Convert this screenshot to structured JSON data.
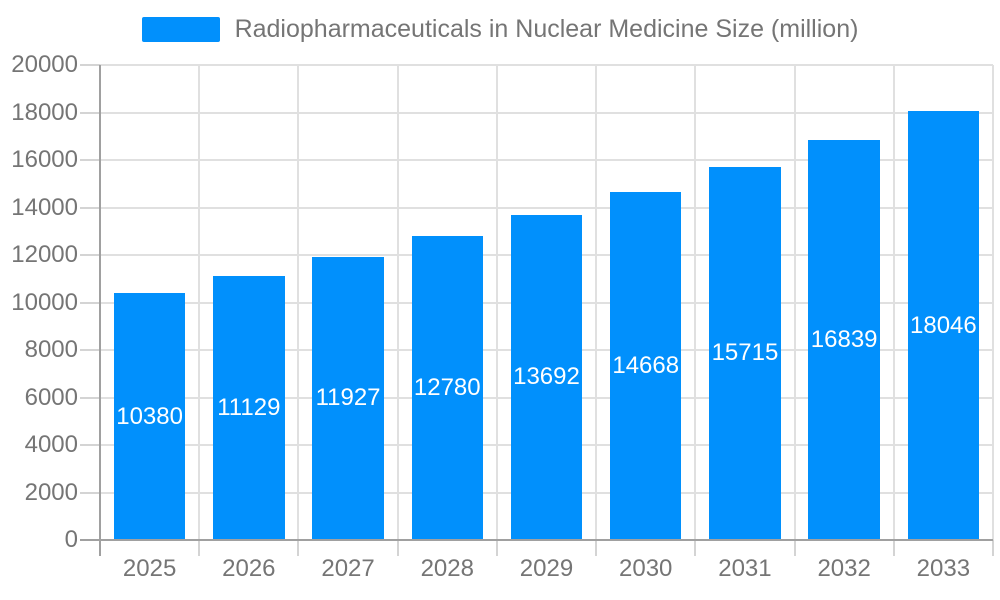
{
  "chart_data": {
    "type": "bar",
    "title": "Radiopharmaceuticals in Nuclear Medicine Size (million)",
    "categories": [
      "2025",
      "2026",
      "2027",
      "2028",
      "2029",
      "2030",
      "2031",
      "2032",
      "2033"
    ],
    "series": [
      {
        "name": "Radiopharmaceuticals in Nuclear Medicine Size (million)",
        "values": [
          10380,
          11129,
          11927,
          12780,
          13692,
          14668,
          15715,
          16839,
          18046
        ]
      }
    ],
    "xlabel": "",
    "ylabel": "",
    "ylim": [
      0,
      20000
    ],
    "ytick_step": 2000,
    "y_tick_labels": [
      "0",
      "2000",
      "4000",
      "6000",
      "8000",
      "10000",
      "12000",
      "14000",
      "16000",
      "18000",
      "20000"
    ],
    "grid": true,
    "legend_position": "top-center",
    "value_label_position": "inside-center"
  },
  "legend": {
    "label": "Radiopharmaceuticals in Nuclear Medicine Size (million)"
  },
  "colors": {
    "bar": "#0190FC",
    "axis_text": "#757575",
    "title_text": "#757575",
    "value_label_text": "#FFFFFF",
    "gridline": "#E0E0E0",
    "axis_line": "#A0A0A0",
    "tick": "#D4D4D4",
    "background": "#FFFFFF"
  }
}
